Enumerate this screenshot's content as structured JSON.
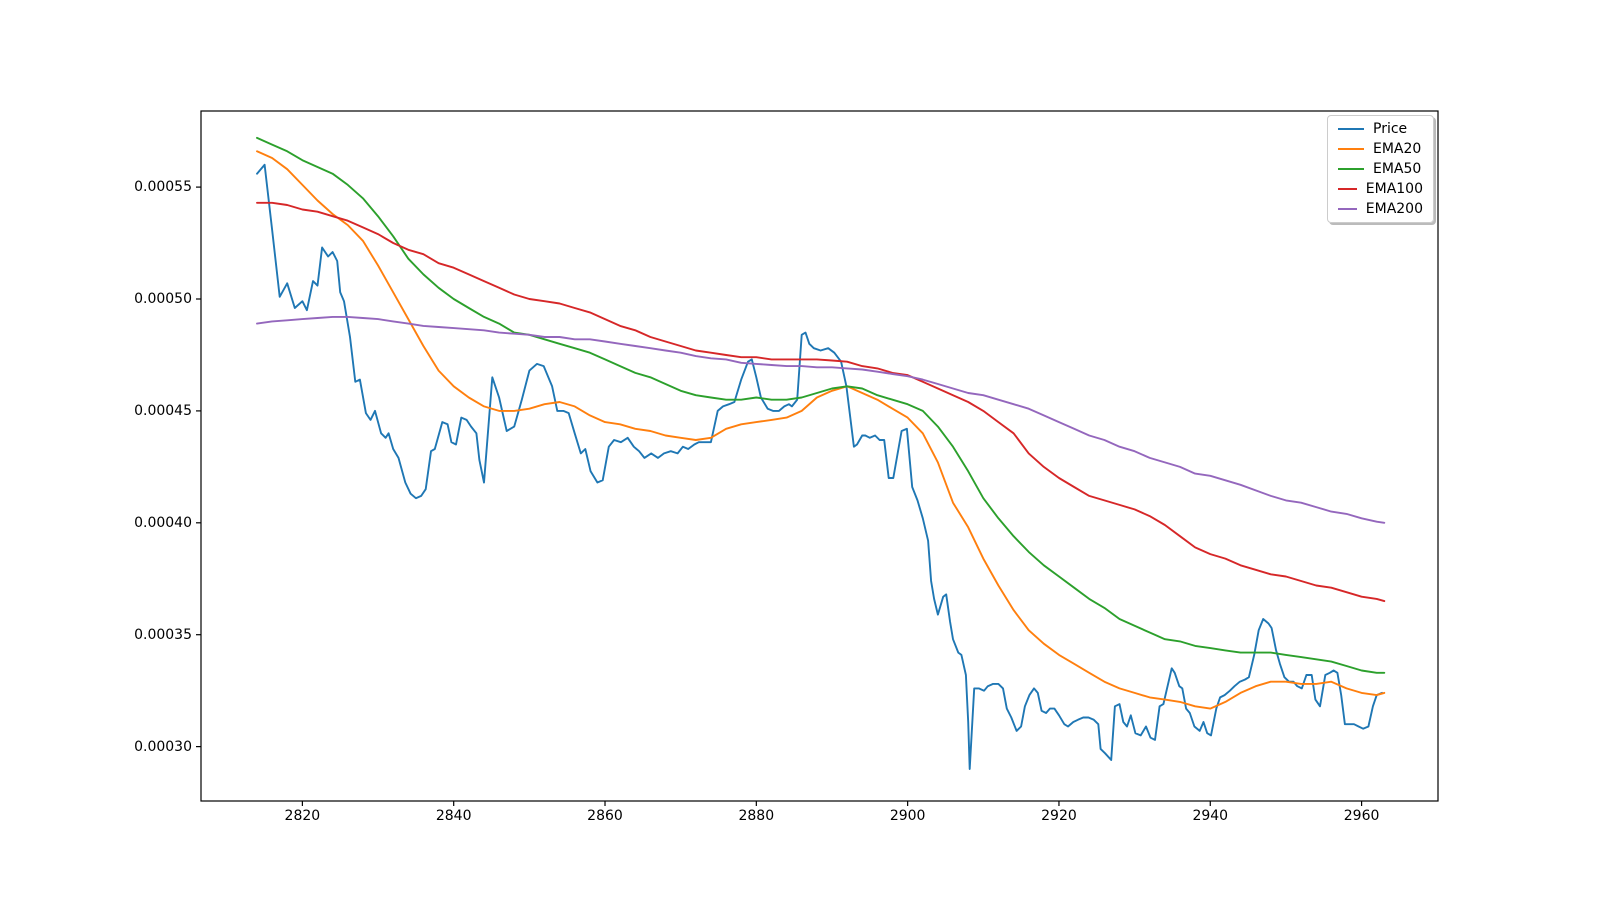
{
  "figure": {
    "background_color": "#ffffff",
    "frame_color": "#000000",
    "tick_color": "#000000",
    "tick_label_color": "#000000"
  },
  "legend": {
    "position": "upper-right",
    "border_color": "#cccccc",
    "shadow_color": "#bbbbbb"
  },
  "chart_data": {
    "type": "line",
    "title": "",
    "xlabel": "",
    "ylabel": "",
    "grid": false,
    "legend_position": "upper right",
    "y_unit_scale": "1e-6",
    "xlim": [
      2806.6,
      2970.1
    ],
    "ylim": [
      275.7,
      584.0
    ],
    "x_ticks": [
      2820,
      2840,
      2860,
      2880,
      2900,
      2920,
      2940,
      2960
    ],
    "x_tick_labels": [
      "2820",
      "2840",
      "2860",
      "2880",
      "2900",
      "2920",
      "2940",
      "2960"
    ],
    "y_ticks": [
      550,
      500,
      450,
      400,
      350,
      300
    ],
    "y_tick_labels": [
      "0.00055",
      "0.00050",
      "0.00045",
      "0.00040",
      "0.00035",
      "0.00030"
    ],
    "ema_x": [
      2814,
      2816,
      2818,
      2820,
      2822,
      2824,
      2826,
      2828,
      2830,
      2832,
      2834,
      2836,
      2838,
      2840,
      2842,
      2844,
      2846,
      2848,
      2850,
      2852,
      2854,
      2856,
      2858,
      2860,
      2862,
      2864,
      2866,
      2868,
      2870,
      2872,
      2874,
      2876,
      2878,
      2880,
      2882,
      2884,
      2886,
      2888,
      2890,
      2892,
      2894,
      2896,
      2898,
      2900,
      2902,
      2904,
      2906,
      2908,
      2910,
      2912,
      2914,
      2916,
      2918,
      2920,
      2922,
      2924,
      2926,
      2928,
      2930,
      2932,
      2934,
      2936,
      2938,
      2940,
      2942,
      2944,
      2946,
      2948,
      2950,
      2952,
      2954,
      2956,
      2958,
      2960,
      2962,
      2963
    ],
    "series": [
      {
        "name": "Price",
        "color": "#1f77b4",
        "x": [
          2814,
          2815,
          2816,
          2817,
          2818,
          2819,
          2820,
          2820.6,
          2821.4,
          2822,
          2822.6,
          2823.4,
          2824,
          2824.6,
          2825,
          2825.5,
          2826.3,
          2827,
          2827.6,
          2828.4,
          2829,
          2829.6,
          2830.4,
          2831,
          2831.4,
          2832,
          2832.7,
          2833.6,
          2834.3,
          2835,
          2835.7,
          2836.3,
          2837,
          2837.5,
          2838.5,
          2839.2,
          2839.7,
          2840.3,
          2841,
          2841.7,
          2842.3,
          2843,
          2843.4,
          2844,
          2845.1,
          2846,
          2847,
          2848,
          2849,
          2850,
          2851,
          2851.9,
          2853,
          2853.7,
          2854.5,
          2855.2,
          2856,
          2856.8,
          2857.4,
          2858.1,
          2859,
          2859.7,
          2860.5,
          2861.2,
          2862.1,
          2863,
          2863.8,
          2864.5,
          2865.2,
          2866.1,
          2867,
          2867.8,
          2868.7,
          2869.6,
          2870.3,
          2871,
          2871.8,
          2872.4,
          2873.3,
          2874,
          2874.9,
          2875.6,
          2876.4,
          2877.1,
          2878,
          2878.9,
          2879.4,
          2880,
          2880.6,
          2881.5,
          2882.2,
          2883,
          2883.7,
          2884.3,
          2884.7,
          2885.4,
          2886,
          2886.5,
          2887,
          2887.6,
          2888.5,
          2889.5,
          2890.3,
          2891.2,
          2891.9,
          2892.9,
          2893.3,
          2894,
          2894.4,
          2895,
          2895.7,
          2896.3,
          2896.9,
          2897.5,
          2898.1,
          2899.2,
          2899.9,
          2900.6,
          2901.3,
          2902,
          2902.7,
          2903.1,
          2903.5,
          2904,
          2904.7,
          2905.1,
          2905.6,
          2906,
          2906.7,
          2907.1,
          2907.7,
          2908,
          2908.2,
          2908.8,
          2909.4,
          2910.1,
          2910.6,
          2911.3,
          2912,
          2912.6,
          2913.1,
          2913.7,
          2914.4,
          2915,
          2915.5,
          2916.1,
          2916.7,
          2917.2,
          2917.7,
          2918.3,
          2918.8,
          2919.4,
          2920,
          2920.7,
          2921.2,
          2921.9,
          2922.5,
          2923.2,
          2923.9,
          2924.6,
          2925.2,
          2925.5,
          2926.1,
          2926.9,
          2927.4,
          2928,
          2928.5,
          2929,
          2929.5,
          2930.1,
          2930.8,
          2931.5,
          2932.1,
          2932.7,
          2933.3,
          2933.8,
          2934.9,
          2935.3,
          2935.9,
          2936.3,
          2936.8,
          2937.3,
          2937.9,
          2938.6,
          2939.1,
          2939.6,
          2940.1,
          2940.8,
          2941.3,
          2941.9,
          2942.6,
          2943.2,
          2943.9,
          2944.6,
          2945.1,
          2945.8,
          2946.4,
          2947,
          2947.7,
          2948.1,
          2948.7,
          2949.2,
          2949.8,
          2950.4,
          2951,
          2951.5,
          2952.1,
          2952.7,
          2953.4,
          2953.9,
          2954.5,
          2955.2,
          2955.8,
          2956.3,
          2956.8,
          2957.3,
          2957.8,
          2958.4,
          2959,
          2959.6,
          2960.2,
          2960.9,
          2961.5,
          2962,
          2962.7
        ],
        "y": [
          556,
          560,
          531,
          501,
          507,
          496,
          499,
          495,
          508,
          506,
          523,
          519,
          521,
          517,
          503,
          499,
          483,
          463,
          464,
          449,
          446,
          450,
          440,
          438,
          440,
          433,
          429,
          418,
          413,
          411,
          412,
          415,
          432,
          433,
          445,
          444,
          436,
          435,
          447,
          446,
          443,
          440,
          428,
          418,
          465,
          456,
          441,
          443,
          455,
          468,
          471,
          470,
          461,
          450,
          450,
          449,
          440,
          431,
          433,
          423,
          418,
          419,
          434,
          437,
          436,
          438,
          434,
          432,
          429,
          431,
          429,
          431,
          432,
          431,
          434,
          433,
          435,
          436,
          436,
          436,
          450,
          452,
          453,
          454,
          464,
          472,
          473,
          465,
          456,
          451,
          450,
          450,
          452,
          453,
          452,
          455,
          484,
          485,
          480,
          478,
          477,
          478,
          476,
          472,
          461,
          434,
          435,
          439,
          439,
          438,
          439,
          437,
          437,
          420,
          420,
          441,
          442,
          416,
          410,
          402,
          392,
          374,
          366,
          359,
          367,
          368,
          356,
          348,
          342,
          341,
          332,
          311,
          290,
          326,
          326,
          325,
          327,
          328,
          328,
          326,
          317,
          313,
          307,
          309,
          318,
          323,
          326,
          324,
          316,
          315,
          317,
          317,
          314,
          310,
          309,
          311,
          312,
          313,
          313,
          312,
          310,
          299,
          297,
          294,
          318,
          319,
          311,
          309,
          314,
          306,
          305,
          309,
          304,
          303,
          318,
          319,
          335,
          333,
          327,
          326,
          317,
          315,
          309,
          307,
          311,
          306,
          305,
          317,
          322,
          323,
          325,
          327,
          329,
          330,
          331,
          341,
          352,
          357,
          355,
          353,
          343,
          337,
          331,
          329,
          329,
          327,
          326,
          332,
          332,
          321,
          318,
          332,
          333,
          334,
          333,
          323,
          310,
          310,
          310,
          309,
          308,
          309,
          318,
          323,
          324
        ]
      },
      {
        "name": "EMA20",
        "color": "#ff7f0e",
        "y": [
          566,
          563,
          558,
          551,
          544,
          538,
          533,
          526,
          515,
          503,
          491,
          479,
          468,
          461,
          456,
          452,
          450,
          450,
          451,
          453,
          454,
          452,
          448,
          445,
          444,
          442,
          441,
          439,
          438,
          437,
          438,
          442,
          444,
          445,
          446,
          447,
          450,
          456,
          459,
          461,
          458,
          455,
          451,
          447,
          440,
          427,
          409,
          398,
          384,
          372,
          361,
          352,
          346,
          341,
          337,
          333,
          329,
          326,
          324,
          322,
          321,
          320,
          318,
          317,
          320,
          324,
          327,
          329,
          329,
          328,
          328,
          329,
          326,
          324,
          323,
          324
        ]
      },
      {
        "name": "EMA50",
        "color": "#2ca02c",
        "y": [
          572,
          569,
          566,
          562,
          559,
          556,
          551,
          545,
          537,
          528,
          518,
          511,
          505,
          500,
          496,
          492,
          489,
          485,
          484,
          482,
          480,
          478,
          476,
          473,
          470,
          467,
          465,
          462,
          459,
          457,
          456,
          455,
          455,
          456,
          455,
          455,
          456,
          458,
          460,
          461,
          460,
          457,
          455,
          453,
          450,
          443,
          434,
          423,
          411,
          402,
          394,
          387,
          381,
          376,
          371,
          366,
          362,
          357,
          354,
          351,
          348,
          347,
          345,
          344,
          343,
          342,
          342,
          342,
          341,
          340,
          339,
          338,
          336,
          334,
          333,
          333
        ]
      },
      {
        "name": "EMA100",
        "color": "#d62728",
        "y": [
          543,
          543,
          542,
          540,
          539,
          537,
          535,
          532,
          529,
          525,
          522,
          520,
          516,
          514,
          511,
          508,
          505,
          502,
          500,
          499,
          498,
          496,
          494,
          491,
          488,
          486,
          483,
          481,
          479,
          477,
          476,
          475,
          474,
          474,
          473,
          473,
          473,
          473,
          472.5,
          472,
          470,
          469,
          467,
          466,
          463,
          460,
          457,
          454,
          450,
          445,
          440,
          431,
          425,
          420,
          416,
          412,
          410,
          408,
          406,
          403,
          399,
          394,
          389,
          386,
          384,
          381,
          379,
          377,
          376,
          374,
          372,
          371,
          369,
          367,
          366,
          365
        ]
      },
      {
        "name": "EMA200",
        "color": "#9467bd",
        "y": [
          489,
          490,
          490.5,
          491,
          491.5,
          492,
          492,
          491.5,
          491,
          490,
          489,
          488,
          487.5,
          487,
          486.5,
          486,
          485,
          484.5,
          484,
          483,
          483,
          482,
          482,
          481,
          480,
          479,
          478,
          477,
          476,
          474.5,
          473.5,
          473,
          471.5,
          471,
          470.5,
          470,
          470,
          469.5,
          469.5,
          469,
          468.5,
          467.5,
          466.5,
          465.5,
          464,
          462,
          460,
          458,
          457,
          455,
          453,
          451,
          448,
          445,
          442,
          439,
          437,
          434,
          432,
          429,
          427,
          425,
          422,
          421,
          419,
          417,
          414.5,
          412,
          410,
          409,
          407,
          405,
          404,
          402,
          400.5,
          400
        ]
      }
    ]
  }
}
